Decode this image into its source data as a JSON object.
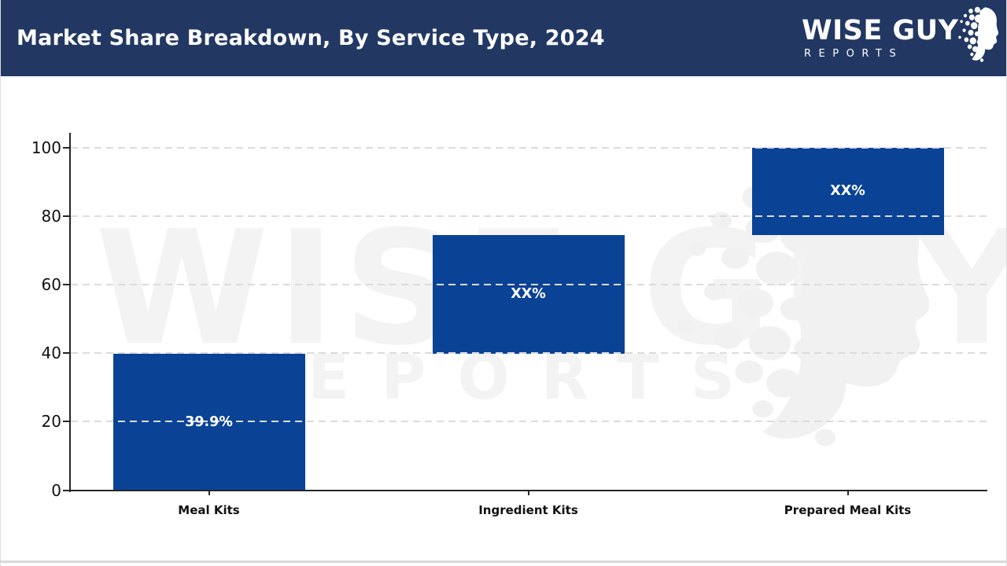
{
  "header": {
    "title": "Market Share Breakdown, By Service Type, 2024",
    "logo": {
      "brand_top": "WISE GUY",
      "brand_bottom": "REPORTS"
    }
  },
  "watermark": {
    "line1": "WISE GUY",
    "line2": "REPORTS"
  },
  "chart_data": {
    "type": "bar",
    "subtype": "waterfall",
    "title": "Market Share Breakdown, By Service Type, 2024",
    "xlabel": "",
    "ylabel": "",
    "ylim": [
      0,
      100
    ],
    "yticks": [
      0,
      20,
      40,
      60,
      80,
      100
    ],
    "grid": "horizontal-dashed",
    "legend": "none",
    "categories": [
      "Meal Kits",
      "Ingredient Kits",
      "Prepared Meal Kits"
    ],
    "segments": [
      {
        "category": "Meal Kits",
        "start": 0,
        "end": 39.9,
        "value": 39.9,
        "label": "39.9%"
      },
      {
        "category": "Ingredient Kits",
        "start": 39.9,
        "end": 74.4,
        "value_estimated": 34.5,
        "label": "XX%"
      },
      {
        "category": "Prepared Meal Kits",
        "start": 74.4,
        "end": 100,
        "value_estimated": 25.6,
        "label": "XX%"
      }
    ]
  },
  "colors": {
    "header_navy": "#223863",
    "bar_blue": "#0a4296",
    "axis": "#262626",
    "gridline": "#dcdcdc",
    "tick_label": "#111111",
    "bar_label": "#ffffff",
    "watermark": "#f3f3f3",
    "page_border": "#d9d9d9"
  }
}
